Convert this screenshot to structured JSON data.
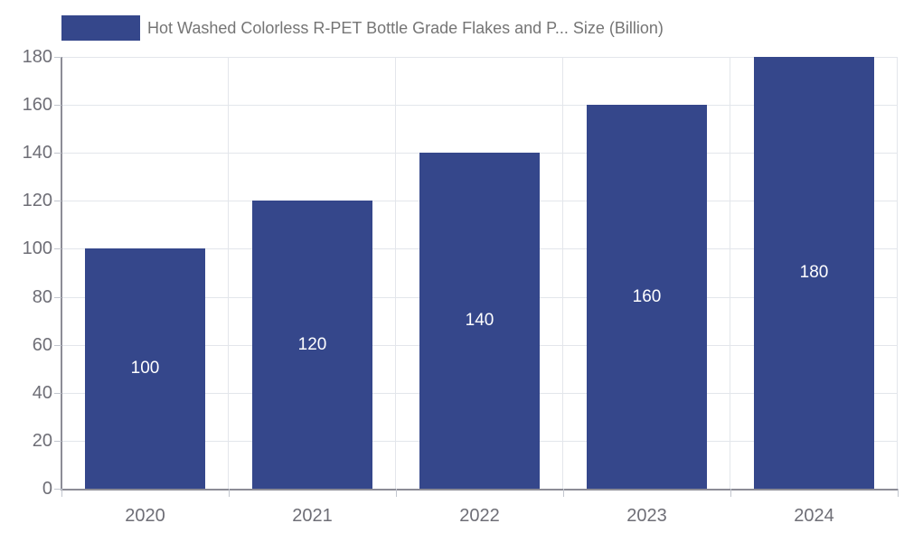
{
  "legend": {
    "label": "Hot Washed Colorless R-PET Bottle Grade Flakes and P... Size (Billion)"
  },
  "colors": {
    "bar_color": "#35478B",
    "grid_color": "#E3E6EB",
    "axis_line": "#8C8C96",
    "tick_color": "#C2C6CE",
    "axis_label": "#6E6E76",
    "legend_text": "#757575",
    "value_label": "#FFFFFF"
  },
  "chart_data": {
    "type": "bar",
    "title": "Hot Washed Colorless R-PET Bottle Grade Flakes and P... Size (Billion)",
    "series_name": "Hot Washed Colorless R-PET Bottle Grade Flakes and P... Size (Billion)",
    "categories": [
      "2020",
      "2021",
      "2022",
      "2023",
      "2024"
    ],
    "values": [
      100,
      120,
      140,
      160,
      180
    ],
    "xlabel": "",
    "ylabel": "",
    "ylim": [
      0,
      180
    ],
    "ytick_step": 20,
    "grid": true,
    "legend_position": "top-left",
    "value_labels": "inside-center"
  }
}
